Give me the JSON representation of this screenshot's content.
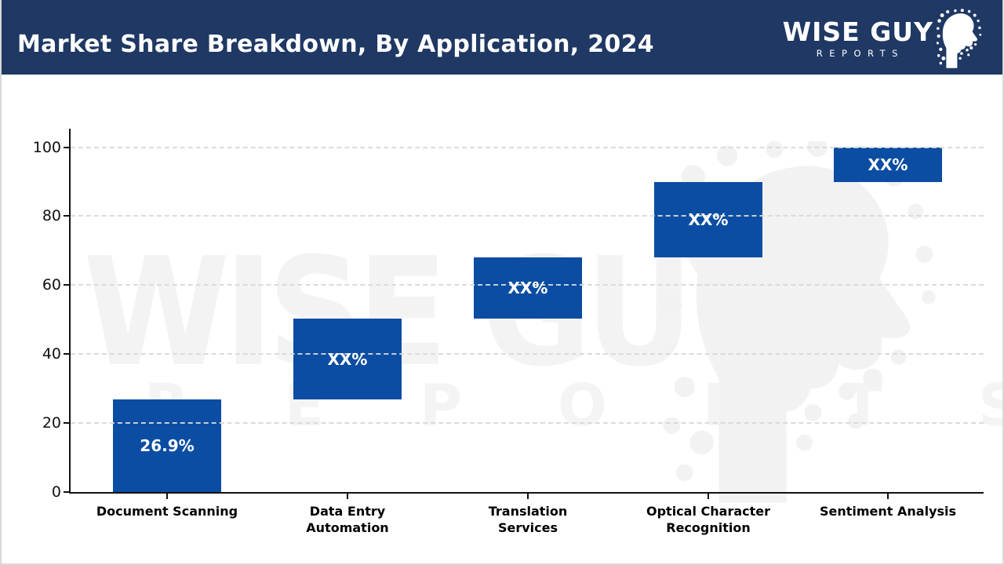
{
  "header": {
    "title": "Market Share Breakdown, By Application, 2024",
    "background_color": "#1f3864"
  },
  "logo": {
    "name": "WISE GUY",
    "sub": "REPORTS"
  },
  "watermark": {
    "line1": "WISE GUY",
    "line2": "R E P O R T S"
  },
  "chart_data": {
    "type": "bar",
    "subtype": "waterfall",
    "title": "Market Share Breakdown, By Application, 2024",
    "categories": [
      "Document Scanning",
      "Data Entry Automation",
      "Translation Services",
      "Optical Character Recognition",
      "Sentiment Analysis"
    ],
    "category_lines": [
      [
        "Document Scanning"
      ],
      [
        "Data Entry",
        "Automation"
      ],
      [
        "Translation",
        "Services"
      ],
      [
        "Optical Character",
        "Recognition"
      ],
      [
        "Sentiment Analysis"
      ]
    ],
    "segments": [
      {
        "label": "Document Scanning",
        "start": 0,
        "end": 26.9,
        "value_label": "26.9%"
      },
      {
        "label": "Data Entry Automation",
        "start": 26.9,
        "end": 50.2,
        "value_label": "XX%"
      },
      {
        "label": "Translation Services",
        "start": 50.2,
        "end": 68.1,
        "value_label": "XX%"
      },
      {
        "label": "Optical Character Recognition",
        "start": 68.1,
        "end": 89.8,
        "value_label": "XX%"
      },
      {
        "label": "Sentiment Analysis",
        "start": 89.8,
        "end": 100,
        "value_label": "XX%"
      }
    ],
    "y_ticks": [
      0,
      20,
      40,
      60,
      80,
      100
    ],
    "ylim": [
      0,
      105
    ],
    "xlabel": "",
    "ylabel": "",
    "bar_color": "#0b4da2",
    "grid": "horizontal-dashed",
    "legend": "none"
  }
}
